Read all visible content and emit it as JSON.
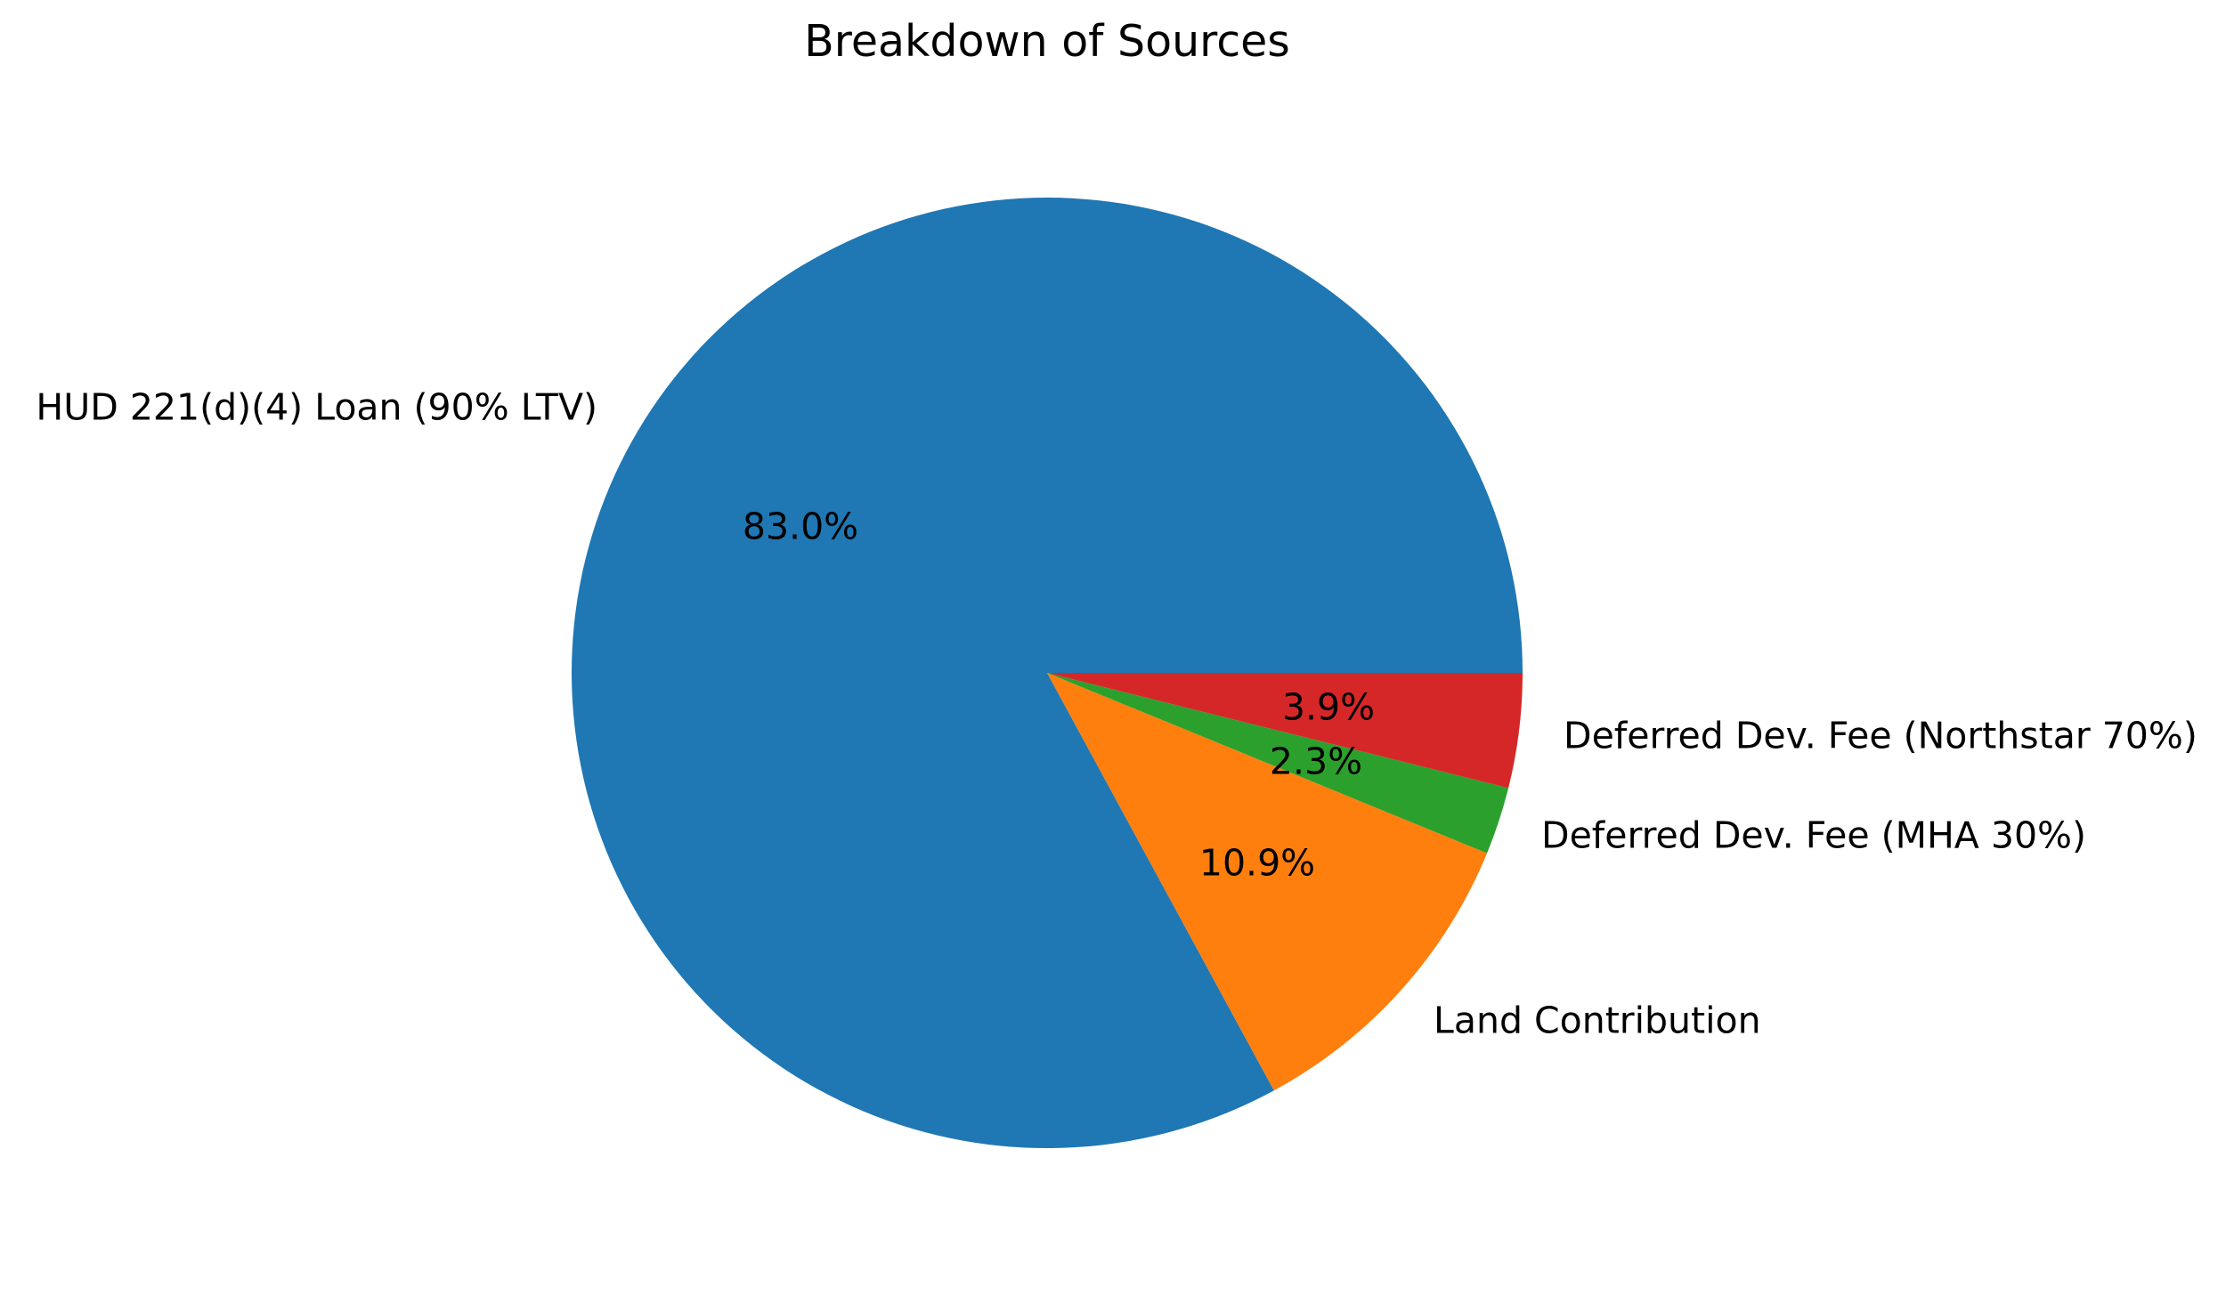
{
  "chart_data": {
    "type": "pie",
    "title": "Breakdown of Sources",
    "start_angle_deg": 0,
    "direction": "counterclockwise",
    "legend": "none",
    "slices": [
      {
        "label": "HUD 221(d)(4) Loan (90% LTV)",
        "value": 83.0,
        "pct_label": "83.0%",
        "color": "#1f77b4"
      },
      {
        "label": "Land Contribution",
        "value": 10.9,
        "pct_label": "10.9%",
        "color": "#ff7f0e"
      },
      {
        "label": "Deferred Dev. Fee (MHA 30%)",
        "value": 2.3,
        "pct_label": "2.3%",
        "color": "#2ca02c"
      },
      {
        "label": "Deferred Dev. Fee (Northstar 70%)",
        "value": 3.9,
        "pct_label": "3.9%",
        "color": "#d62728"
      }
    ]
  }
}
